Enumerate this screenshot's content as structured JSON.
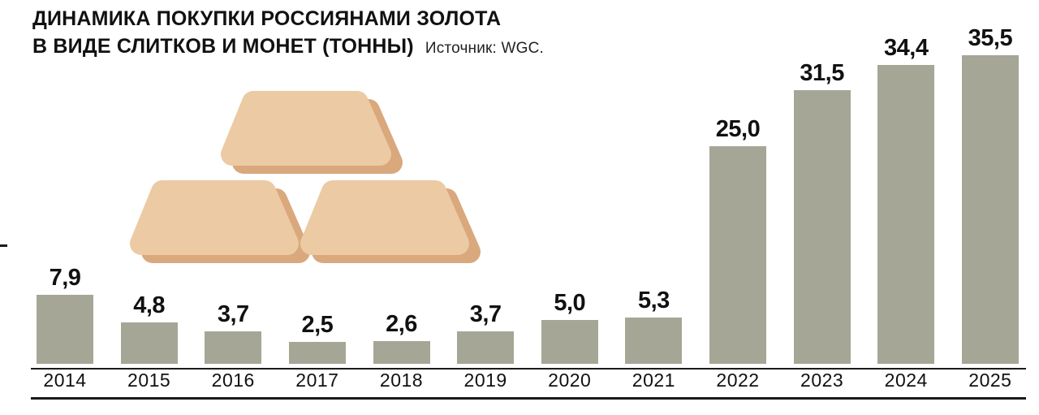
{
  "header": {
    "title_line1": "ДИНАМИКА ПОКУПКИ РОССИЯНАМИ ЗОЛОТА",
    "title_line2": "В ВИДЕ СЛИТКОВ И МОНЕТ (ТОННЫ)",
    "source": "Источник: WGC."
  },
  "chart_data": {
    "type": "bar",
    "title": "ДИНАМИКА ПОКУПКИ РОССИЯНАМИ ЗОЛОТА В ВИДЕ СЛИТКОВ И МОНЕТ (ТОННЫ)",
    "source": "Источник: WGC.",
    "categories": [
      "2014",
      "2015",
      "2016",
      "2017",
      "2018",
      "2019",
      "2020",
      "2021",
      "2022",
      "2023",
      "2024",
      "2025"
    ],
    "values": [
      7.9,
      4.8,
      3.7,
      2.5,
      2.6,
      3.7,
      5.0,
      5.3,
      25.0,
      31.5,
      34.4,
      35.5
    ],
    "value_labels": [
      "7,9",
      "4,8",
      "3,7",
      "2,5",
      "2,6",
      "3,7",
      "5,0",
      "5,3",
      "25,0",
      "31,5",
      "34,4",
      "35,5"
    ],
    "xlabel": "",
    "ylabel": "",
    "unit": "тонны",
    "ylim": [
      0,
      35.5
    ],
    "grid": false,
    "legend": "none",
    "bar_color": "#a6a697",
    "axis_color": "#1a1a1a",
    "ingot_fill": "#eccaa4",
    "ingot_shadow": "#d9a87d"
  }
}
